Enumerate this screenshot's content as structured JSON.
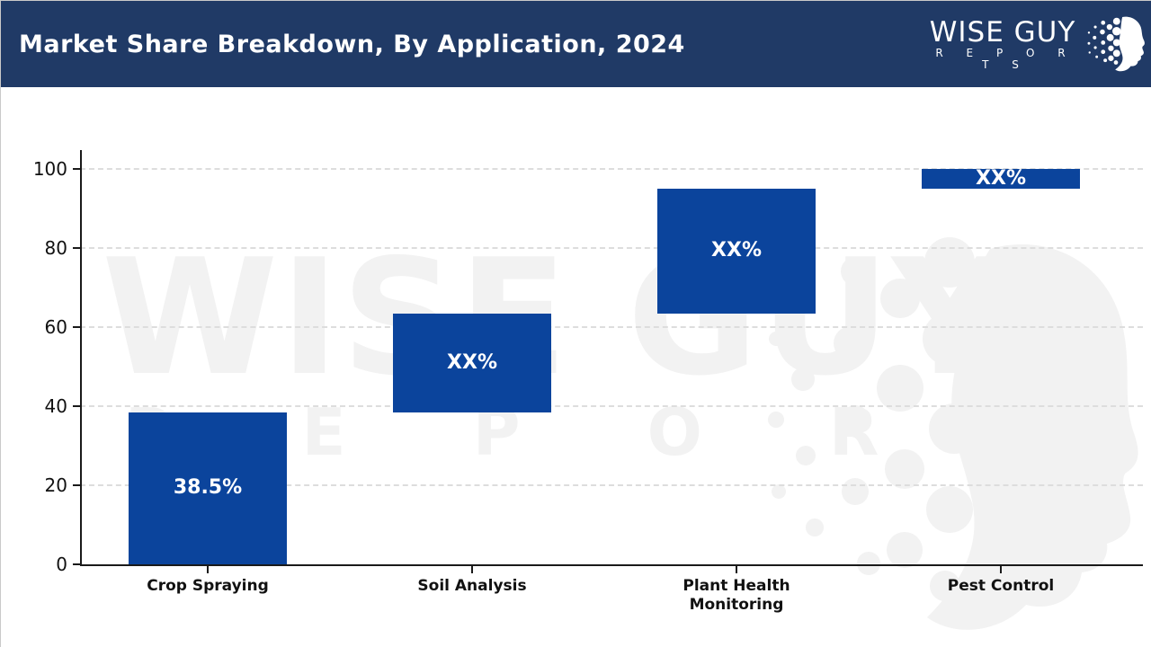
{
  "header": {
    "title": "Market Share Breakdown, By Application, 2024",
    "bg_color": "#203a66",
    "logo": {
      "line1": "WISE GUY",
      "line2": "R E P O R T S"
    }
  },
  "chart_data": {
    "type": "bar",
    "subtype": "waterfall",
    "title": "Market Share Breakdown, By Application, 2024",
    "xlabel": "",
    "ylabel": "",
    "categories": [
      "Crop Spraying",
      "Soil Analysis",
      "Plant Health\nMonitoring",
      "Pest Control"
    ],
    "segments": [
      {
        "category": "Crop Spraying",
        "start": 0,
        "end": 38.5,
        "value": 38.5,
        "label": "38.5%"
      },
      {
        "category": "Soil Analysis",
        "start": 38.5,
        "end": 63.5,
        "value": 25,
        "label": "XX%"
      },
      {
        "category": "Plant Health Monitoring",
        "start": 63.5,
        "end": 95,
        "value": 31.5,
        "label": "XX%"
      },
      {
        "category": "Pest Control",
        "start": 95,
        "end": 100,
        "value": 5,
        "label": "XX%"
      }
    ],
    "y_ticks": [
      0,
      20,
      40,
      60,
      80,
      100
    ],
    "ylim": [
      0,
      105
    ],
    "grid": "horizontal-dashed",
    "legend": "none",
    "bar_color": "#0b449c",
    "bar_label_color": "#ffffff",
    "watermark": {
      "line1": "WISE GUY",
      "line2": "R E P O R T S"
    }
  }
}
